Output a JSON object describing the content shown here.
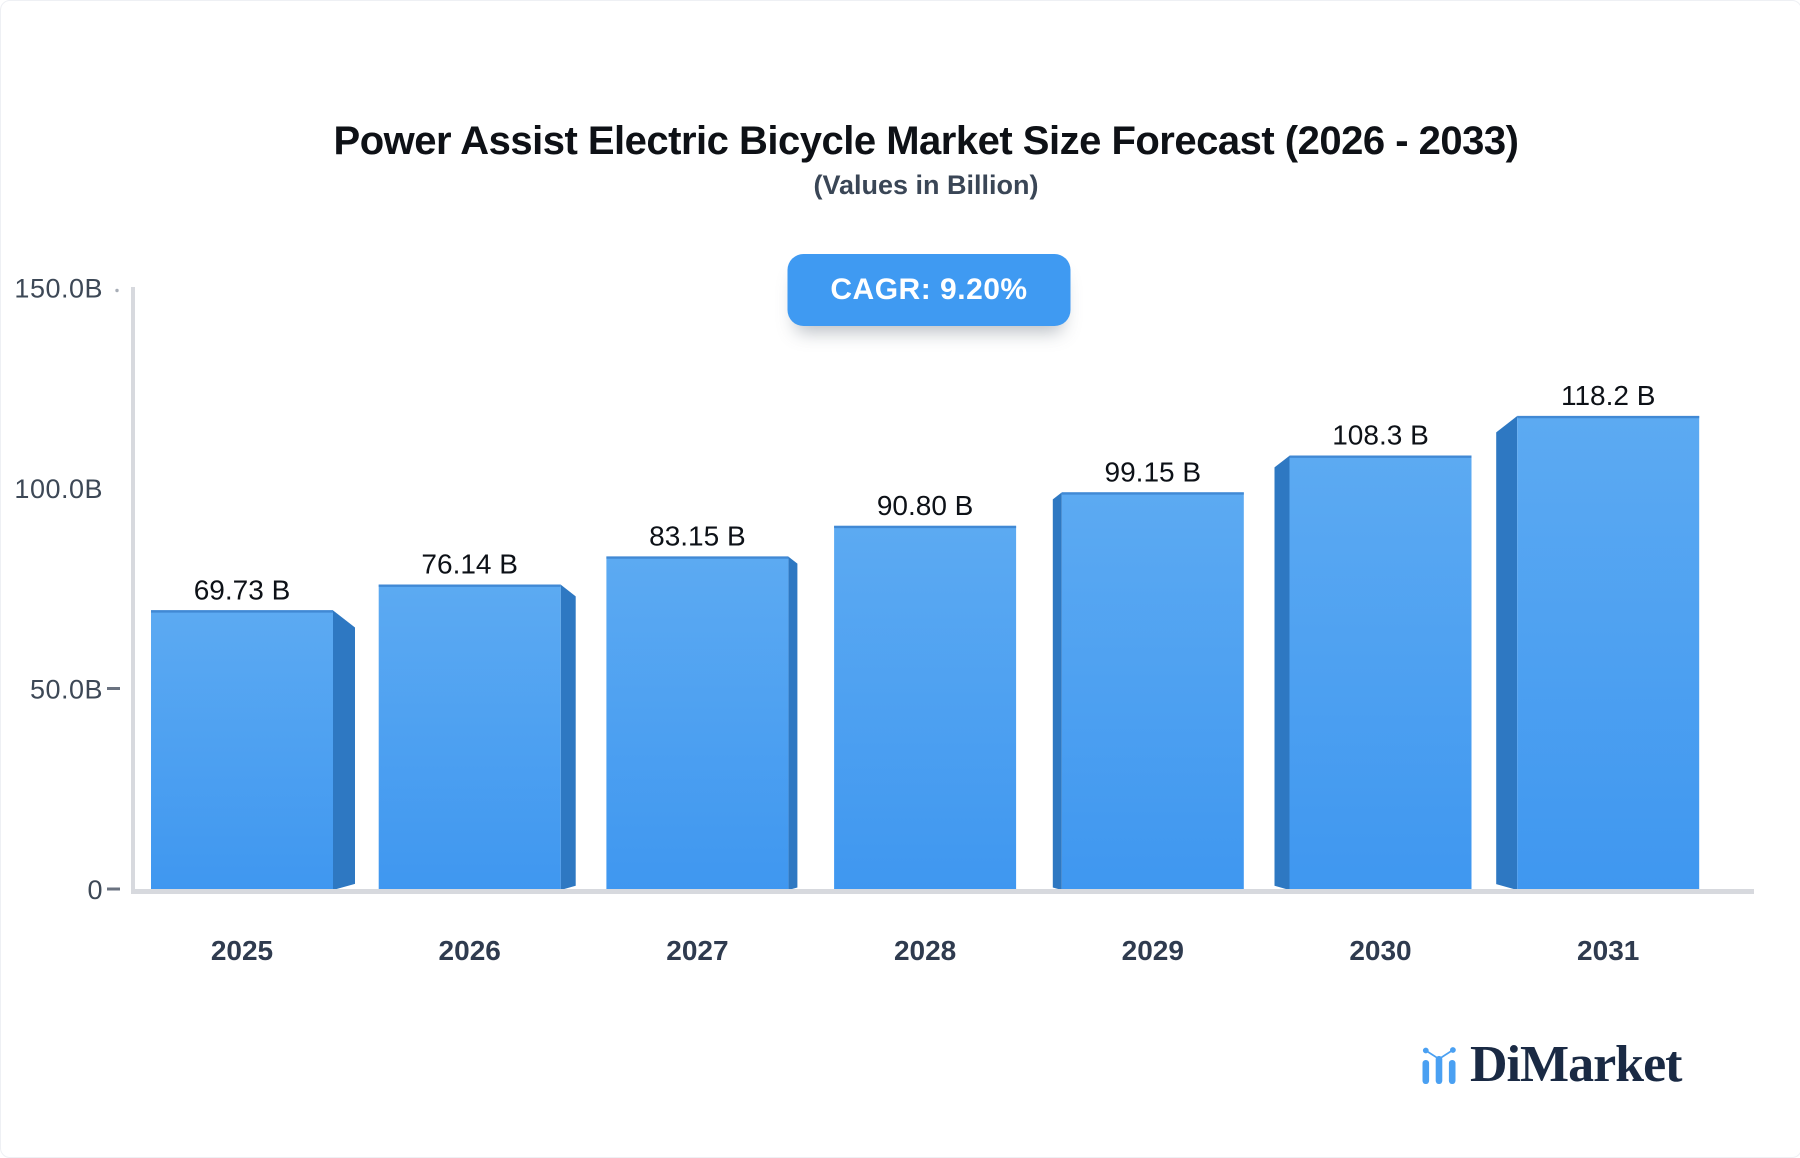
{
  "header": {
    "title": "Power Assist Electric Bicycle Market Size Forecast (2026 - 2033)",
    "subtitle": "(Values in Billion)",
    "cagr_label": "CAGR: 9.20%"
  },
  "branding": {
    "name": "DiMarket",
    "icon": "dimarket-bars-logo-icon"
  },
  "colors": {
    "accent_blue": "#3f9af2",
    "bar_face_top": "#5caaf2",
    "bar_face_bottom": "#3f97f0",
    "bar_side": "#2e78c2",
    "bar_top_edge": "#4189d4",
    "axis_line": "#d7d9de",
    "tick_text": "#3d4856",
    "tick_dash": "#6a7280",
    "value_text": "#0d1117",
    "year_text": "#2f3b4f"
  },
  "chart_data": {
    "type": "bar",
    "title": "Power Assist Electric Bicycle Market Size Forecast (2026 - 2033)",
    "subtitle": "(Values in Billion)",
    "annotation": "CAGR: 9.20%",
    "categories": [
      "2025",
      "2026",
      "2027",
      "2028",
      "2029",
      "2030",
      "2031"
    ],
    "values": [
      69.73,
      76.14,
      83.15,
      90.8,
      99.15,
      108.3,
      118.2
    ],
    "value_labels": [
      "69.73 B",
      "76.14 B",
      "83.15 B",
      "90.80 B",
      "99.15 B",
      "108.3 B",
      "118.2 B"
    ],
    "unit": "B",
    "xlabel": "",
    "ylabel": "",
    "ylim": [
      0,
      150
    ],
    "yticks": [
      {
        "value": 0,
        "label": "0"
      },
      {
        "value": 50,
        "label": "50.0B"
      },
      {
        "value": 100,
        "label": "100.0B"
      },
      {
        "value": 150,
        "label": "150.0B"
      }
    ],
    "grid": false,
    "legend": null,
    "style": "3d-perspective-blue-bars"
  }
}
